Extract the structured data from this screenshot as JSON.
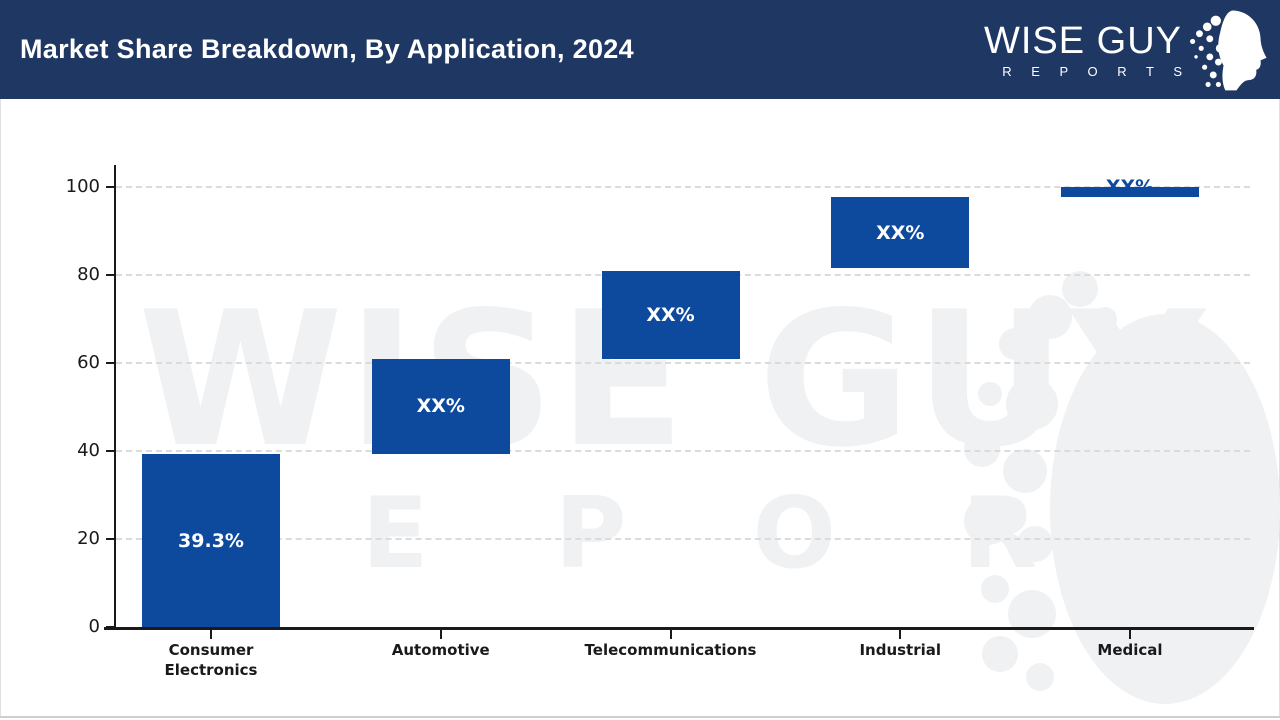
{
  "header": {
    "title": "Market Share Breakdown, By Application, 2024",
    "logo": {
      "wordmark": "WISE GUY",
      "subtitle": "R E P O R T S"
    }
  },
  "watermark": {
    "line1": "WISE GUY",
    "line2": "R E P O R T S"
  },
  "colors": {
    "header_bg": "#1F3763",
    "bar": "#0D4A9E",
    "grid": "#DBDBDB",
    "axis": "#1A1A1A",
    "bar_label_inside": "#FFFFFF",
    "watermark": "#F0F1F2"
  },
  "chart_data": {
    "type": "bar",
    "subtype": "waterfall",
    "title": "Market Share Breakdown, By Application, 2024",
    "xlabel": "",
    "ylabel": "",
    "ylim": [
      0,
      105
    ],
    "yticks": [
      0,
      20,
      40,
      60,
      80,
      100
    ],
    "grid": "horizontal-dashed",
    "legend": "none",
    "categories": [
      "Consumer Electronics",
      "Automotive",
      "Telecommunications",
      "Industrial",
      "Medical"
    ],
    "segments": [
      {
        "category": "Consumer Electronics",
        "start": 0,
        "end": 39.3,
        "label": "39.3%",
        "label_style": "white-inside"
      },
      {
        "category": "Automotive",
        "start": 39.3,
        "end": 61.0,
        "label": "XX%",
        "label_style": "white-inside"
      },
      {
        "category": "Telecommunications",
        "start": 61.0,
        "end": 80.8,
        "label": "XX%",
        "label_style": "white-inside"
      },
      {
        "category": "Industrial",
        "start": 81.5,
        "end": 97.7,
        "label": "XX%",
        "label_style": "white-inside"
      },
      {
        "category": "Medical",
        "start": 97.7,
        "end": 100.0,
        "label": "XX%",
        "label_style": "dark-above"
      }
    ]
  }
}
